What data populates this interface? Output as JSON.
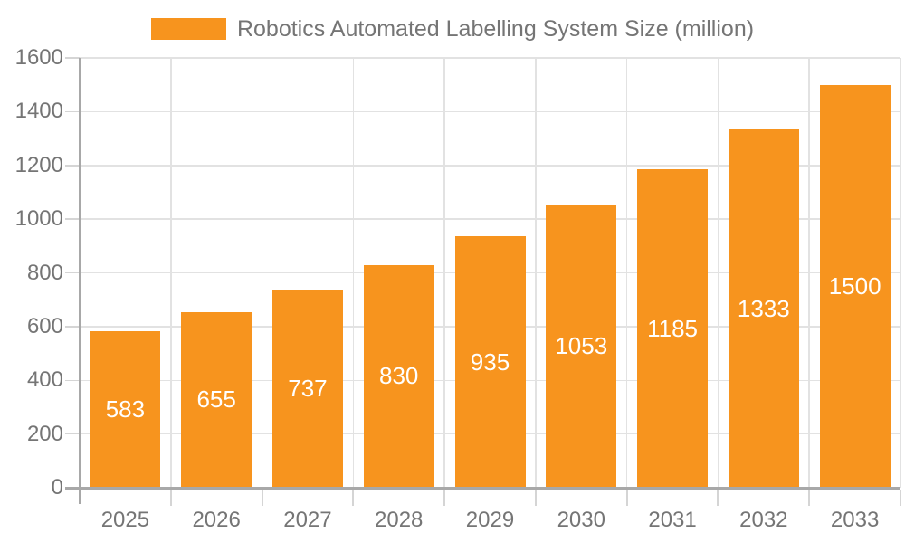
{
  "chart_data": {
    "type": "bar",
    "title": "",
    "legend": {
      "label": "Robotics Automated Labelling System Size (million)",
      "position": "top-center"
    },
    "categories": [
      "2025",
      "2026",
      "2027",
      "2028",
      "2029",
      "2030",
      "2031",
      "2032",
      "2033"
    ],
    "series": [
      {
        "name": "Robotics Automated Labelling System Size (million)",
        "values": [
          583,
          655,
          737,
          830,
          935,
          1053,
          1185,
          1333,
          1500
        ]
      }
    ],
    "value_labels": [
      "583",
      "655",
      "737",
      "830",
      "935",
      "1053",
      "1185",
      "1333",
      "1500"
    ],
    "value_label_position": "inside-center",
    "xlabel": "",
    "ylabel": "",
    "ylim": [
      0,
      1600
    ],
    "y_ticks": [
      0,
      200,
      400,
      600,
      800,
      1000,
      1200,
      1400,
      1600
    ],
    "grid": "both",
    "colors": {
      "bar": "#F7941E",
      "value_label": "#FFFFFF",
      "axis_text": "#757575",
      "legend_text": "#757575",
      "gridline": "#E2E2E2",
      "axis_line": "#A8A8A8",
      "tick": "#D5D5D5",
      "background": "#FFFFFF"
    }
  }
}
